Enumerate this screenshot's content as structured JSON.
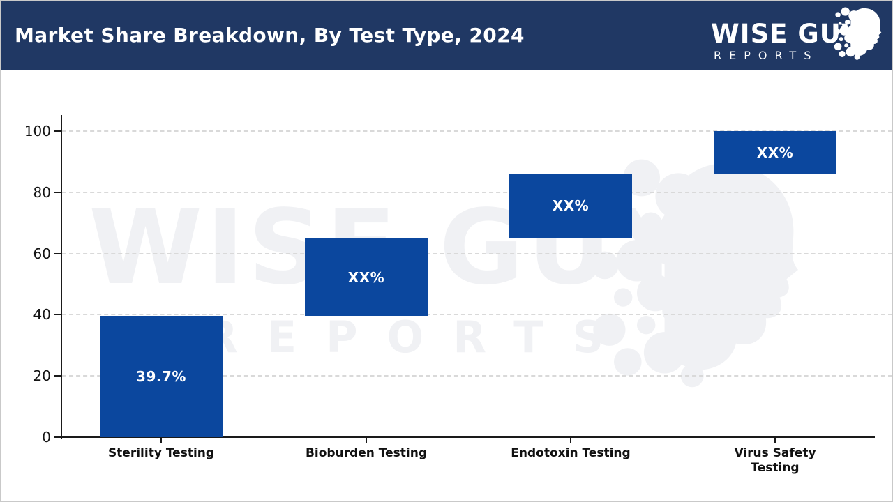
{
  "header": {
    "title": "Market Share Breakdown, By Test Type, 2024",
    "logo": {
      "line1": "WISE GUY",
      "line2": "REPORTS",
      "icon": "wise-guy-dotted-face-logo"
    }
  },
  "watermark": {
    "line1": "WISE GUY",
    "line2": "REPORTS",
    "icon": "wise-guy-dotted-face-watermark"
  },
  "colors": {
    "header_bg": "#203864",
    "bar": "#0b479e",
    "grid": "#d9d9d9",
    "axis": "#1a1a1a",
    "watermark": "#f0f1f4",
    "bar_label": "#ffffff",
    "title_text": "#ffffff"
  },
  "chart_data": {
    "type": "bar",
    "subtype": "waterfall",
    "title": "Market Share Breakdown, By Test Type, 2024",
    "xlabel": "",
    "ylabel": "",
    "categories": [
      "Sterility Testing",
      "Bioburden Testing",
      "Endotoxin Testing",
      "Virus Safety Testing"
    ],
    "segments": [
      {
        "category": "Sterility Testing",
        "start": 0,
        "end": 39.7,
        "label": "39.7%"
      },
      {
        "category": "Bioburden Testing",
        "start": 39.7,
        "end": 65,
        "label": "XX%"
      },
      {
        "category": "Endotoxin Testing",
        "start": 65,
        "end": 86,
        "label": "XX%"
      },
      {
        "category": "Virus Safety Testing",
        "start": 86,
        "end": 100,
        "label": "XX%"
      }
    ],
    "yticks": [
      0,
      20,
      40,
      60,
      80,
      100
    ],
    "ylim": [
      0,
      105
    ],
    "grid": "horizontal-dashed",
    "legend": false
  }
}
